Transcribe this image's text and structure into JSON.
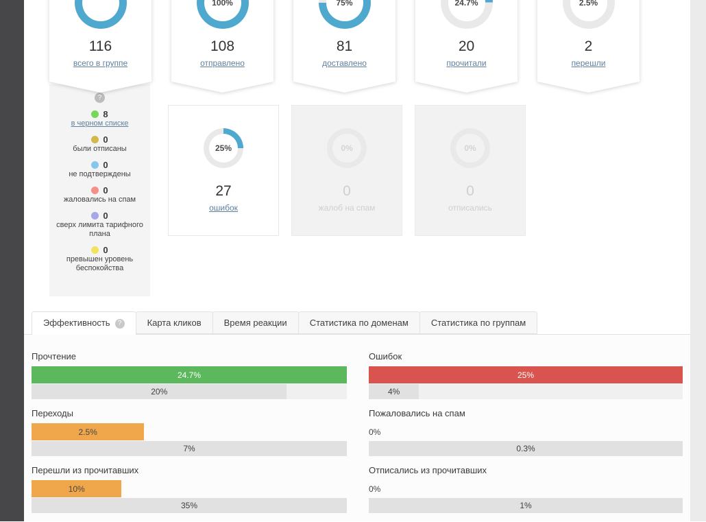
{
  "theme": {
    "accent_blue": "#4fa8cd",
    "donut_track": "#e9e9e9",
    "green": "#5cb85c",
    "red": "#d9534f",
    "orange": "#f0a64a",
    "bar_track": "#f0f0f0",
    "bar_fill": "#e1e1e1",
    "link": "#5e7f9e",
    "dark_strip": "#47474a",
    "panel_bg": "#f4f4f4"
  },
  "help_icon": "?",
  "summary_cards": [
    {
      "value": "116",
      "label": "всего в группе",
      "percent_label": "",
      "percent": 100
    },
    {
      "value": "108",
      "label": "отправлено",
      "percent_label": "100%",
      "percent": 100
    },
    {
      "value": "81",
      "label": "доставлено",
      "percent_label": "75%",
      "percent": 75
    },
    {
      "value": "20",
      "label": "прочитали",
      "percent_label": "24.7%",
      "percent": 24.7
    },
    {
      "value": "2",
      "label": "перешли",
      "percent_label": "2.5%",
      "percent": 2.5
    }
  ],
  "breakdown": {
    "items": [
      {
        "value": "8",
        "label": "в черном списке",
        "color": "#76d85b",
        "link": true
      },
      {
        "value": "0",
        "label": "были отписаны",
        "color": "#d3b84d",
        "link": false
      },
      {
        "value": "0",
        "label": "не подтверждены",
        "color": "#85c6ec",
        "link": false
      },
      {
        "value": "0",
        "label": "жаловались на спам",
        "color": "#f59088",
        "link": false
      },
      {
        "value": "0",
        "label": "сверх лимита тарифного плана",
        "color": "#a7a7e8",
        "link": false
      },
      {
        "value": "0",
        "label": "превышен уровень беспокойства",
        "color": "#f3e25e",
        "link": false
      }
    ]
  },
  "secondary_cards": [
    {
      "value": "27",
      "label": "ошибок",
      "percent_label": "25%",
      "percent": 25,
      "disabled": false
    },
    {
      "value": "0",
      "label": "жалоб на спам",
      "percent_label": "0%",
      "percent": 0,
      "disabled": true
    },
    {
      "value": "0",
      "label": "отписались",
      "percent_label": "0%",
      "percent": 0,
      "disabled": true
    }
  ],
  "tabs": [
    {
      "label": "Эффективность",
      "active": true,
      "help": true
    },
    {
      "label": "Карта кликов",
      "active": false,
      "help": false
    },
    {
      "label": "Время реакции",
      "active": false,
      "help": false
    },
    {
      "label": "Статистика по доменам",
      "active": false,
      "help": false
    },
    {
      "label": "Статистика по группам",
      "active": false,
      "help": false
    }
  ],
  "chart_data": {
    "type": "bar",
    "note": "paired horizontal bars: campaign value vs comparison value, each pair scaled to its max",
    "columns": {
      "left": [
        {
          "title": "Прочтение",
          "value": 24.7,
          "value_label": "24.7%",
          "color": "green",
          "compare": 20,
          "compare_label": "20%"
        },
        {
          "title": "Переходы",
          "value": 2.5,
          "value_label": "2.5%",
          "color": "orange",
          "compare": 7,
          "compare_label": "7%"
        },
        {
          "title": "Перешли из прочитавших",
          "value": 10,
          "value_label": "10%",
          "color": "orange",
          "compare": 35,
          "compare_label": "35%"
        }
      ],
      "right": [
        {
          "title": "Ошибок",
          "value": 25,
          "value_label": "25%",
          "color": "red",
          "compare": 4,
          "compare_label": "4%"
        },
        {
          "title": "Пожаловались на спам",
          "value": 0,
          "value_label": "0%",
          "color": "none",
          "compare": 0.3,
          "compare_label": "0.3%"
        },
        {
          "title": "Отписались из прочитавших",
          "value": 0,
          "value_label": "0%",
          "color": "none",
          "compare": 1,
          "compare_label": "1%"
        }
      ]
    }
  }
}
